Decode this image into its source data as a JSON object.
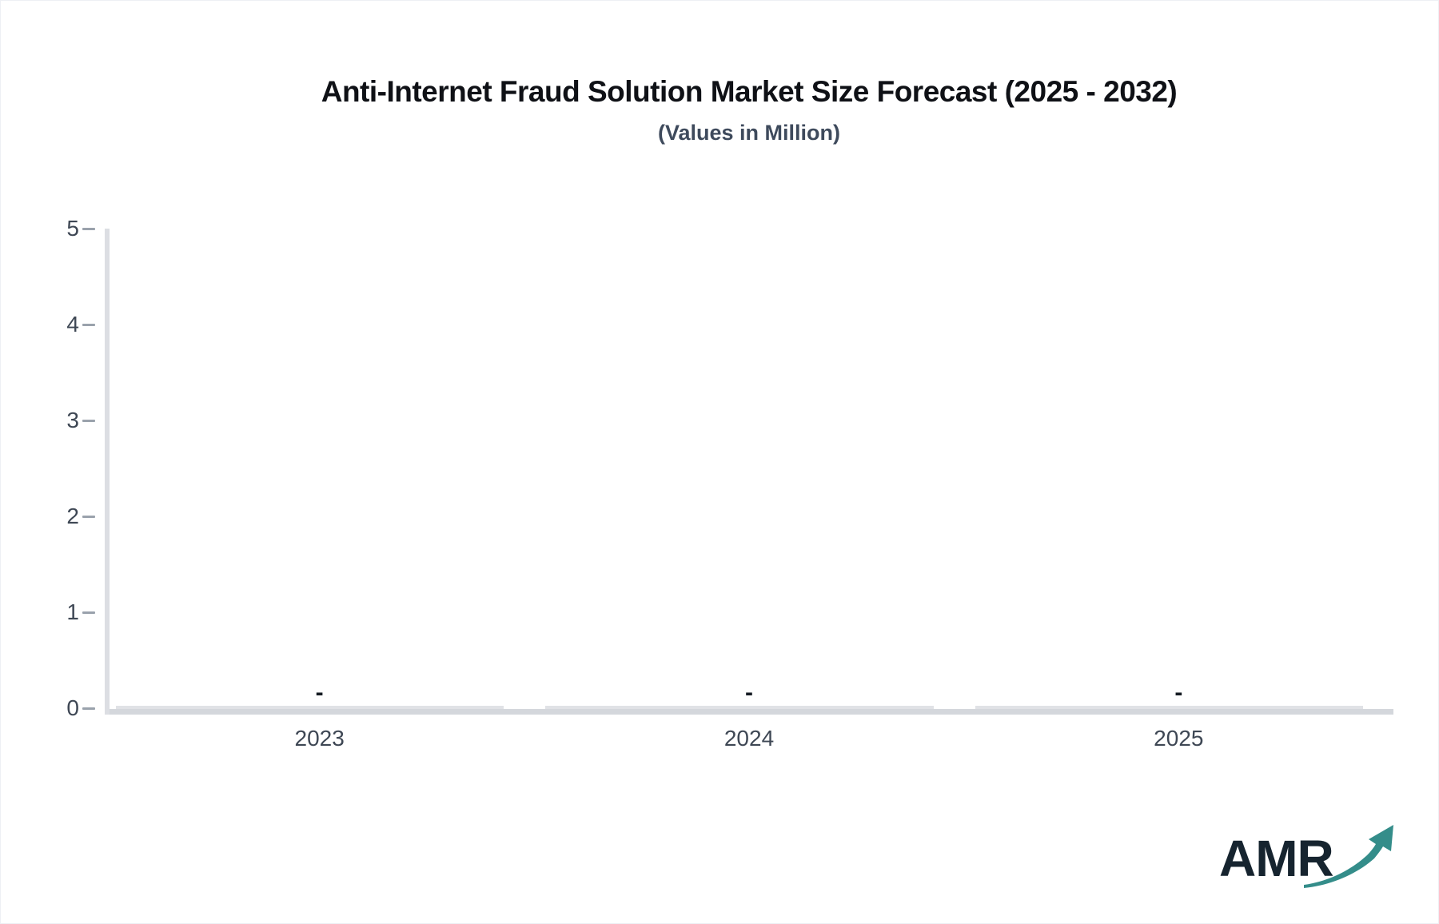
{
  "chart_data": {
    "type": "bar",
    "title": "Anti-Internet Fraud Solution Market Size Forecast (2025 - 2032)",
    "subtitle": "(Values in Million)",
    "categories": [
      "2023",
      "2024",
      "2025"
    ],
    "values": [
      null,
      null,
      null
    ],
    "value_labels": [
      "-",
      "-",
      "-"
    ],
    "y_ticks": [
      0,
      1,
      2,
      3,
      4,
      5
    ],
    "ylim": [
      0,
      5
    ],
    "xlabel": "",
    "ylabel": "",
    "grid": false,
    "legend_position": "none"
  },
  "logo": {
    "text": "AMR",
    "icon": "growth-arrow-icon"
  },
  "colors": {
    "bg": "#ffffff",
    "title": "#0f1116",
    "subtitle": "#3e4a5c",
    "axis_label": "#3e4754",
    "tick": "#9aa2ac",
    "axis_line": "#dcdee3",
    "baseline": "#d4d7dc",
    "bar": "#e0e2e6",
    "dash": "#141a22",
    "logo_text": "#16242f",
    "logo_arrow": "#348d8a"
  }
}
